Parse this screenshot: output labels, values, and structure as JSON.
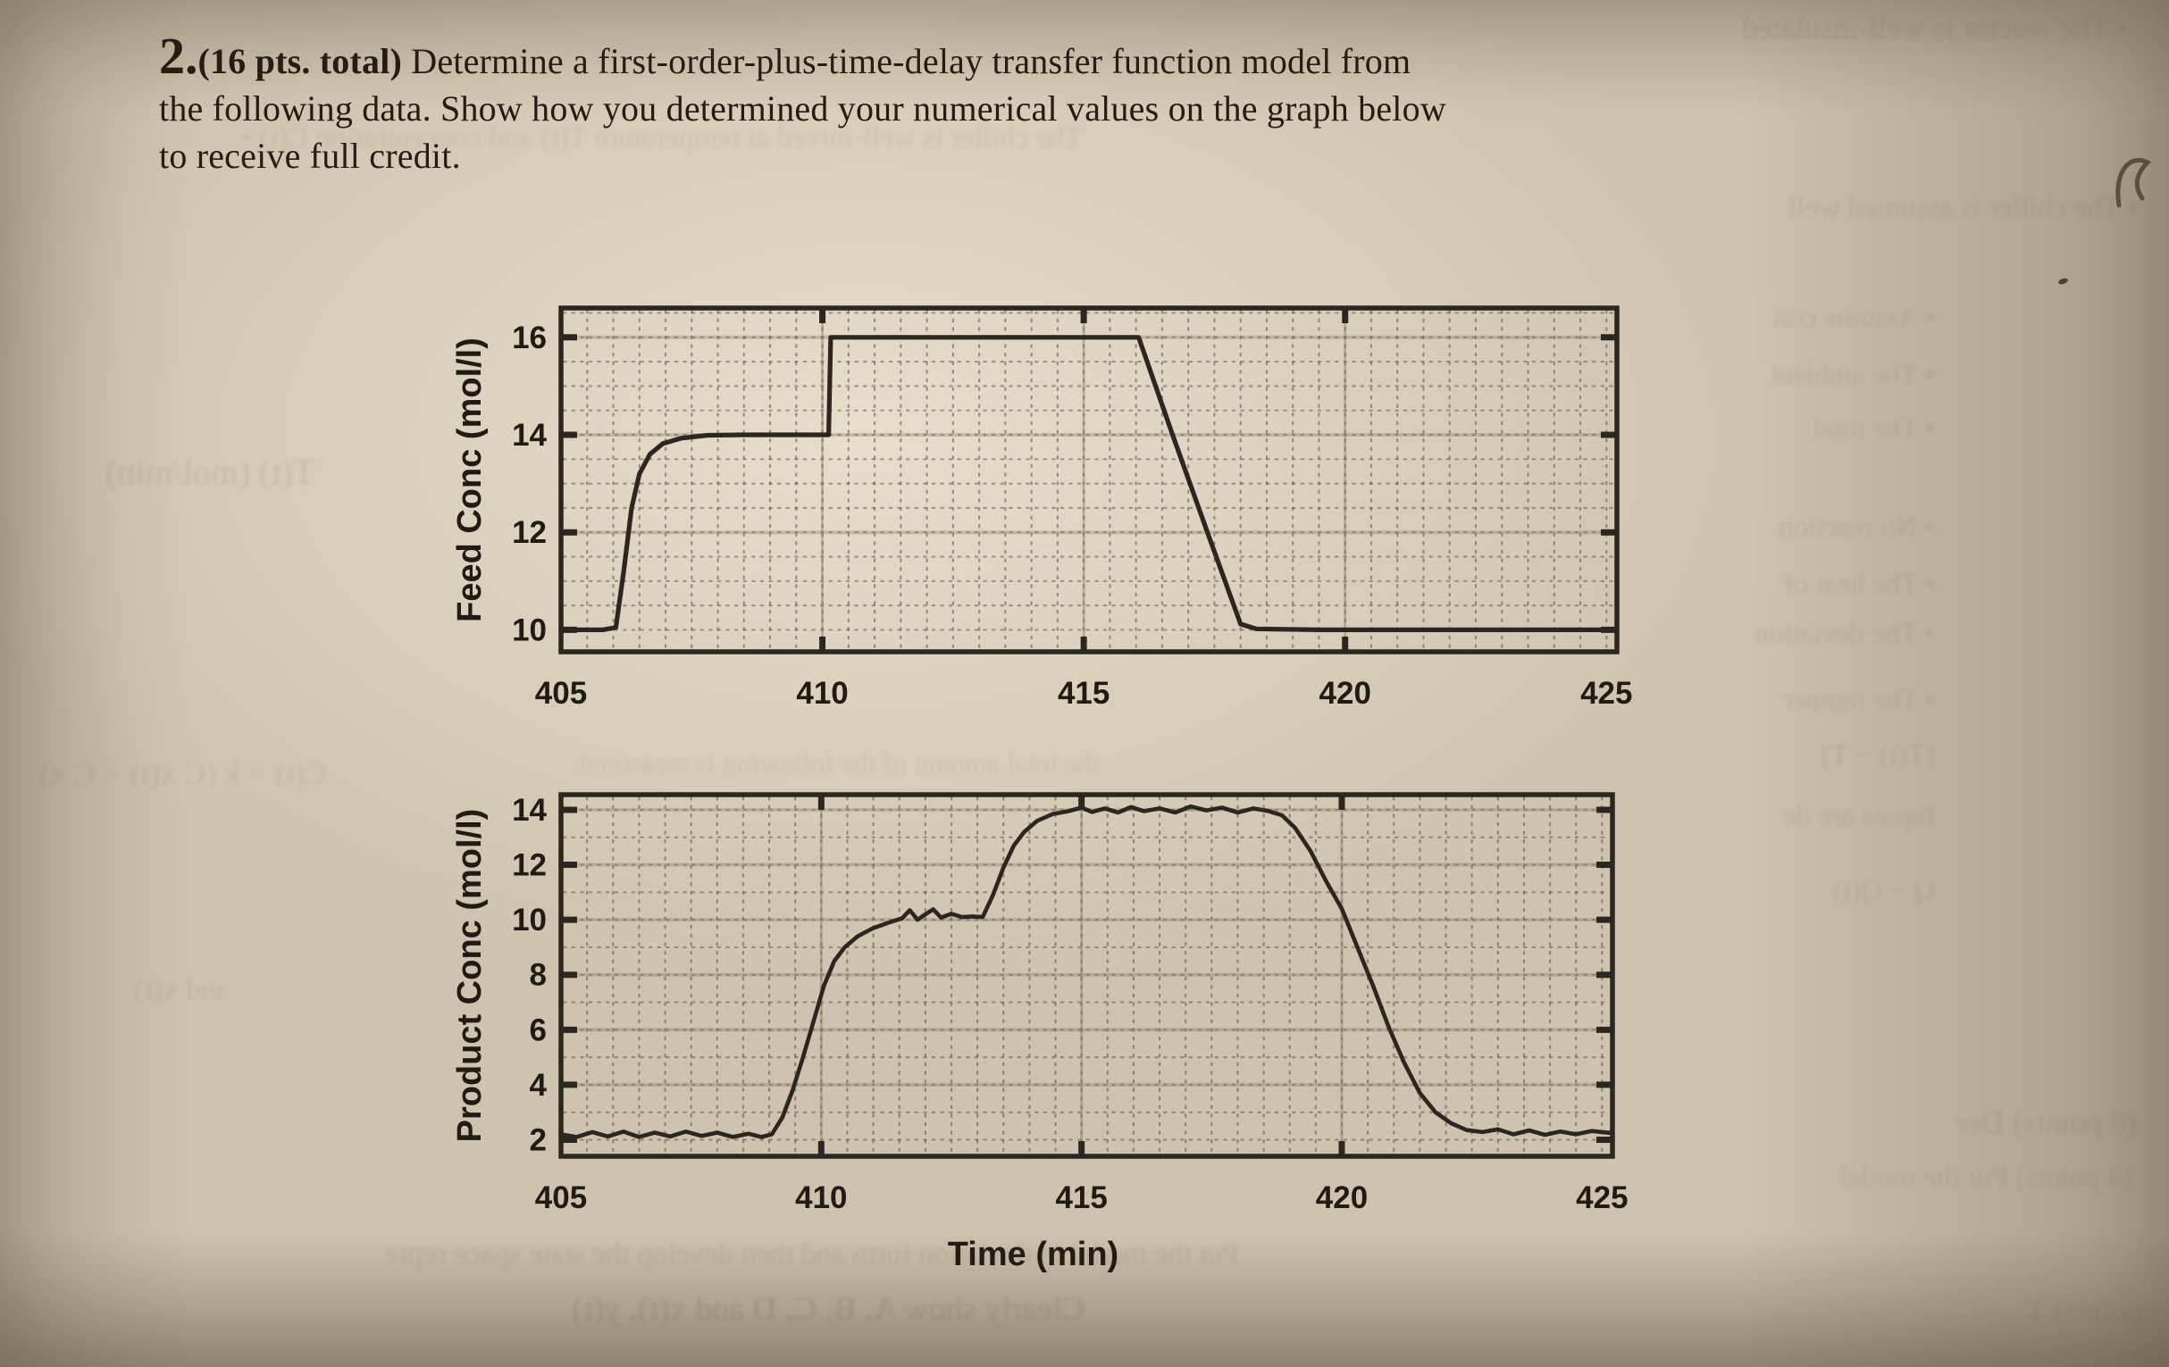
{
  "page": {
    "problem_number": "2.",
    "points_label": "(16 pts. total)",
    "statement_line1": "Determine a first-order-plus-time-delay transfer function model from",
    "statement_line2": "the following data. Show how you determined your numerical values on the graph below",
    "statement_line3": "to receive full credit."
  },
  "colors": {
    "ink": "#2b261f",
    "label_text": "#211c13",
    "minor_grid": "#5c5243",
    "major_grid": "#8a7d66",
    "paper": "#cdc3ae"
  },
  "chart_data": [
    {
      "type": "line",
      "title": "",
      "xlabel": "",
      "ylabel": "Feed Conc (mol/l)",
      "xlim": [
        405,
        425.2
      ],
      "ylim": [
        9.55,
        16.6
      ],
      "xticks": [
        405,
        410,
        415,
        420,
        425
      ],
      "yticks": [
        10,
        12,
        14,
        16
      ],
      "minor_dx": 0.5,
      "minor_dy": 0.5,
      "major_x": [
        410,
        415,
        420
      ],
      "major_y": [
        12,
        14,
        16
      ],
      "grid": "dotted",
      "legend": "none",
      "series": [
        {
          "name": "Feed Conc",
          "points": [
            [
              405,
              10
            ],
            [
              405.4,
              10
            ],
            [
              405.8,
              10
            ],
            [
              406.05,
              10.05
            ],
            [
              406.2,
              11.2
            ],
            [
              406.35,
              12.5
            ],
            [
              406.5,
              13.2
            ],
            [
              406.7,
              13.6
            ],
            [
              406.95,
              13.82
            ],
            [
              407.3,
              13.93
            ],
            [
              407.8,
              13.99
            ],
            [
              408.5,
              14
            ],
            [
              409.3,
              14
            ],
            [
              410.12,
              14
            ],
            [
              410.16,
              16
            ],
            [
              411.5,
              16
            ],
            [
              413,
              16
            ],
            [
              414.5,
              16
            ],
            [
              416.05,
              16
            ],
            [
              416.7,
              14
            ],
            [
              417.4,
              11.9
            ],
            [
              418.0,
              10.12
            ],
            [
              418.3,
              10.02
            ],
            [
              419.5,
              10
            ],
            [
              421,
              10
            ],
            [
              422.5,
              10
            ],
            [
              424,
              10
            ],
            [
              425.2,
              10
            ]
          ]
        }
      ]
    },
    {
      "type": "line",
      "title": "",
      "xlabel": "Time (min)",
      "ylabel": "Product Conc (mol/l)",
      "xlim": [
        405,
        425.2
      ],
      "ylim": [
        1.4,
        14.55
      ],
      "xticks": [
        405,
        410,
        415,
        420,
        425
      ],
      "yticks": [
        2,
        4,
        6,
        8,
        10,
        12,
        14
      ],
      "minor_dx": 0.5,
      "minor_dy": 1,
      "major_x": [
        410,
        415,
        420
      ],
      "major_y": [
        4,
        6,
        8,
        10,
        12,
        14
      ],
      "grid": "dotted",
      "legend": "none",
      "series": [
        {
          "name": "Product Conc",
          "points": [
            [
              405,
              2.2
            ],
            [
              405.3,
              2.1
            ],
            [
              405.6,
              2.28
            ],
            [
              405.9,
              2.12
            ],
            [
              406.2,
              2.3
            ],
            [
              406.5,
              2.1
            ],
            [
              406.8,
              2.26
            ],
            [
              407.1,
              2.12
            ],
            [
              407.4,
              2.3
            ],
            [
              407.7,
              2.14
            ],
            [
              408,
              2.26
            ],
            [
              408.3,
              2.1
            ],
            [
              408.6,
              2.22
            ],
            [
              408.85,
              2.1
            ],
            [
              409.05,
              2.2
            ],
            [
              409.25,
              2.8
            ],
            [
              409.45,
              3.8
            ],
            [
              409.65,
              5.0
            ],
            [
              409.85,
              6.3
            ],
            [
              410.05,
              7.6
            ],
            [
              410.25,
              8.5
            ],
            [
              410.45,
              9.0
            ],
            [
              410.7,
              9.4
            ],
            [
              411,
              9.7
            ],
            [
              411.3,
              9.9
            ],
            [
              411.55,
              10.05
            ],
            [
              411.7,
              10.35
            ],
            [
              411.85,
              10.0
            ],
            [
              412.0,
              10.2
            ],
            [
              412.15,
              10.38
            ],
            [
              412.3,
              10.08
            ],
            [
              412.5,
              10.22
            ],
            [
              412.7,
              10.1
            ],
            [
              412.9,
              10.12
            ],
            [
              413.1,
              10.1
            ],
            [
              413.3,
              10.9
            ],
            [
              413.5,
              11.9
            ],
            [
              413.7,
              12.7
            ],
            [
              413.9,
              13.2
            ],
            [
              414.15,
              13.6
            ],
            [
              414.45,
              13.85
            ],
            [
              414.75,
              13.95
            ],
            [
              415.0,
              14.08
            ],
            [
              415.2,
              13.92
            ],
            [
              415.45,
              14.05
            ],
            [
              415.7,
              13.9
            ],
            [
              415.95,
              14.1
            ],
            [
              416.2,
              13.95
            ],
            [
              416.5,
              14.05
            ],
            [
              416.8,
              13.9
            ],
            [
              417.1,
              14.12
            ],
            [
              417.4,
              13.98
            ],
            [
              417.7,
              14.08
            ],
            [
              418.0,
              13.9
            ],
            [
              418.3,
              14.05
            ],
            [
              418.6,
              13.95
            ],
            [
              418.85,
              13.8
            ],
            [
              419.1,
              13.35
            ],
            [
              419.4,
              12.5
            ],
            [
              419.7,
              11.4
            ],
            [
              420.0,
              10.4
            ],
            [
              420.3,
              9.0
            ],
            [
              420.6,
              7.6
            ],
            [
              420.9,
              6.1
            ],
            [
              421.2,
              4.8
            ],
            [
              421.5,
              3.7
            ],
            [
              421.8,
              3.0
            ],
            [
              422.1,
              2.6
            ],
            [
              422.4,
              2.35
            ],
            [
              422.7,
              2.28
            ],
            [
              423.0,
              2.38
            ],
            [
              423.3,
              2.2
            ],
            [
              423.6,
              2.34
            ],
            [
              423.9,
              2.18
            ],
            [
              424.2,
              2.3
            ],
            [
              424.5,
              2.2
            ],
            [
              424.8,
              2.32
            ],
            [
              425.2,
              2.24
            ]
          ]
        }
      ]
    }
  ],
  "artifacts": [
    {
      "text": "•  The reactor is well-insulated"
    },
    {
      "text": "The chiller is well-mixed at temperature T(t) and concentration C(t)  •"
    },
    {
      "text": "•  The chiller is assumed well"
    },
    {
      "text": "•  Assume con"
    },
    {
      "text": "•  The ambient"
    },
    {
      "text": "•  The total"
    },
    {
      "text": "•  No reaction"
    },
    {
      "text": "•  The heat of"
    },
    {
      "text": "•  The deviation"
    },
    {
      "text": "•  The temper"
    },
    {
      "text": "(T(t) − T)"
    },
    {
      "text": "Inputs are de"
    },
    {
      "text": "Q − Q(t)"
    },
    {
      "text": "T(t) (mol/min)"
    },
    {
      "text": "C(t) = k (C x(t) − C x)"
    },
    {
      "text": "and x(t)"
    },
    {
      "text": "the total amount of the following is measured:"
    },
    {
      "text": "(8 points) Der"
    },
    {
      "text": "(4 points) Put the model"
    },
    {
      "text": "Put the model in deviation form and then develop the state space repre"
    },
    {
      "text": "Clearly show A, B, C, D and x(t), y(t)"
    },
    {
      "text": "points) T"
    }
  ]
}
